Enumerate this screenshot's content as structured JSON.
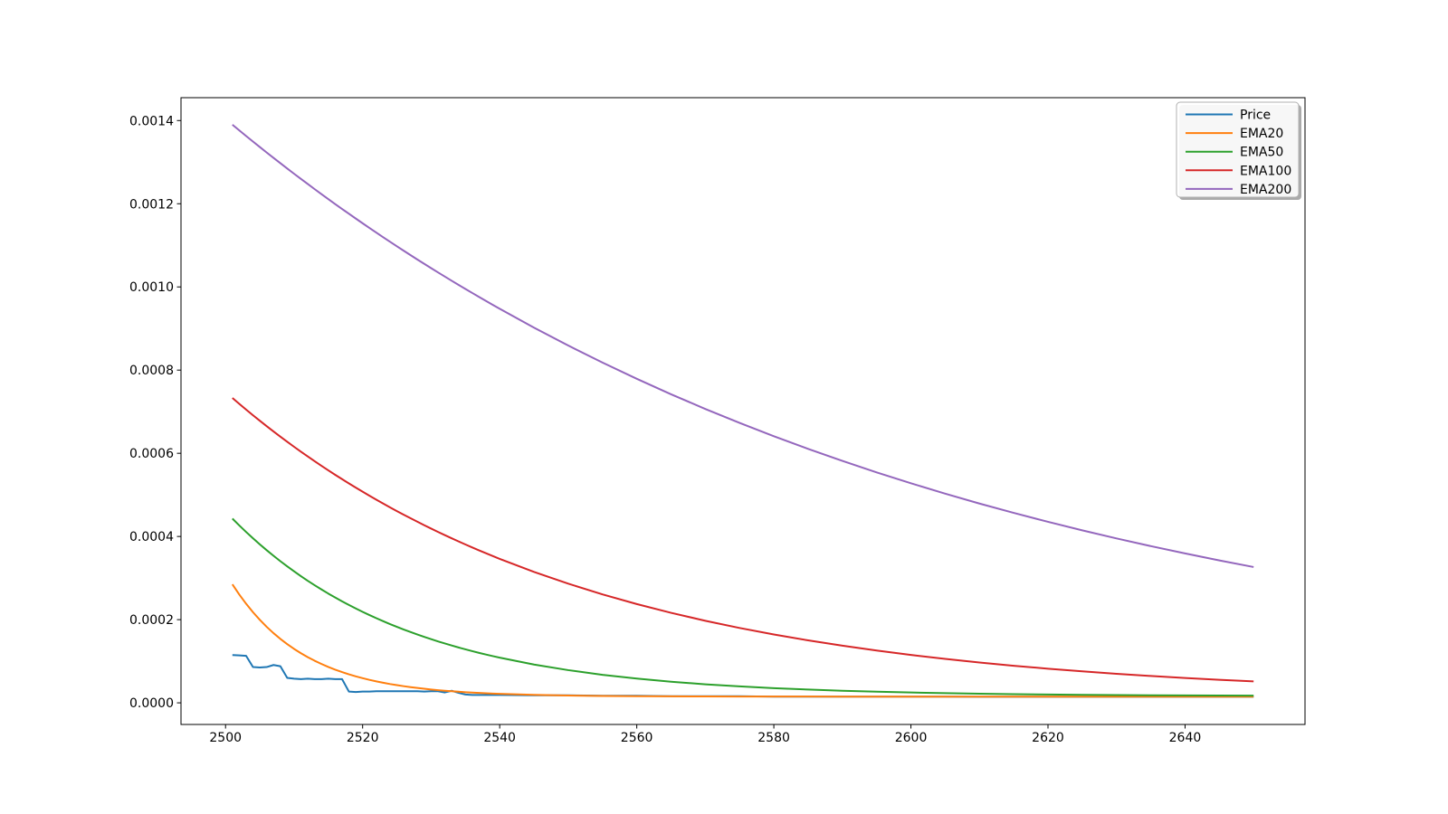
{
  "figure": {
    "background_color": "#ffffff",
    "spine_color": "#000000",
    "tick_label_color": "#000000"
  },
  "chart_data": {
    "type": "line",
    "title": "",
    "xlabel": "",
    "ylabel": "",
    "grid": false,
    "xlim": [
      2493.5,
      2657.5
    ],
    "ylim": [
      -5.2e-05,
      0.001455
    ],
    "xticks": {
      "values": [
        2500,
        2520,
        2540,
        2560,
        2580,
        2600,
        2620,
        2640
      ],
      "labels": [
        "2500",
        "2520",
        "2540",
        "2560",
        "2580",
        "2600",
        "2620",
        "2640"
      ]
    },
    "yticks": {
      "values": [
        0,
        0.0002,
        0.0004,
        0.0006,
        0.0008,
        0.001,
        0.0012,
        0.0014
      ],
      "labels": [
        "0.0000",
        "0.0002",
        "0.0004",
        "0.0006",
        "0.0008",
        "0.0010",
        "0.0012",
        "0.0014"
      ]
    },
    "x": [
      2501,
      2502,
      2503,
      2504,
      2505,
      2506,
      2507,
      2508,
      2509,
      2510,
      2511,
      2512,
      2513,
      2514,
      2515,
      2516,
      2517,
      2518,
      2519,
      2520,
      2521,
      2522,
      2523,
      2524,
      2525,
      2526,
      2527,
      2528,
      2529,
      2530,
      2531,
      2532,
      2533,
      2534,
      2535,
      2536,
      2537,
      2538,
      2539,
      2540,
      2545,
      2550,
      2555,
      2560,
      2565,
      2570,
      2575,
      2580,
      2585,
      2590,
      2595,
      2600,
      2605,
      2610,
      2615,
      2620,
      2625,
      2630,
      2635,
      2640,
      2645,
      2650
    ],
    "series": [
      {
        "name": "Price",
        "color": "#1f77b4",
        "values": [
          0.000115,
          0.000114,
          0.000113,
          8.6e-05,
          8.5e-05,
          8.6e-05,
          9.1e-05,
          8.8e-05,
          6e-05,
          5.8e-05,
          5.7e-05,
          5.8e-05,
          5.7e-05,
          5.7e-05,
          5.8e-05,
          5.7e-05,
          5.7e-05,
          2.7e-05,
          2.6e-05,
          2.7e-05,
          2.7e-05,
          2.8e-05,
          2.8e-05,
          2.8e-05,
          2.8e-05,
          2.8e-05,
          2.8e-05,
          2.8e-05,
          2.7e-05,
          2.8e-05,
          2.8e-05,
          2.5e-05,
          2.9e-05,
          2.4e-05,
          2e-05,
          1.9e-05,
          1.9e-05,
          1.9e-05,
          1.9e-05,
          1.9e-05,
          1.8e-05,
          1.8e-05,
          1.7e-05,
          1.7e-05,
          1.6e-05,
          1.6e-05,
          1.6e-05,
          1.5e-05,
          1.5e-05,
          1.5e-05,
          1.5e-05,
          1.5e-05,
          1.5e-05,
          1.45e-05,
          1.45e-05,
          1.45e-05,
          1.45e-05,
          1.45e-05,
          1.45e-05,
          1.45e-05,
          1.45e-05,
          1.45e-05
        ]
      },
      {
        "name": "EMA20",
        "color": "#ff7f0e",
        "values": [
          0.000285,
          0.0002605,
          0.0002382,
          0.0002179,
          0.0001995,
          0.0001827,
          0.0001675,
          0.0001537,
          0.0001411,
          0.0001296,
          0.0001192,
          0.0001098,
          0.0001012,
          9.34e-05,
          8.62e-05,
          7.98e-05,
          7.39e-05,
          6.85e-05,
          6.37e-05,
          5.93e-05,
          5.52e-05,
          5.16e-05,
          4.83e-05,
          4.52e-05,
          4.25e-05,
          4e-05,
          3.77e-05,
          3.57e-05,
          3.38e-05,
          3.21e-05,
          3.05e-05,
          2.91e-05,
          2.78e-05,
          2.67e-05,
          2.56e-05,
          2.46e-05,
          2.38e-05,
          2.3e-05,
          2.22e-05,
          2.16e-05,
          1.91e-05,
          1.75e-05,
          1.66e-05,
          1.6e-05,
          1.56e-05,
          1.54e-05,
          1.52e-05,
          1.51e-05,
          1.51e-05,
          1.5e-05,
          1.5e-05,
          1.5e-05,
          1.5e-05,
          1.5e-05,
          1.5e-05,
          1.5e-05,
          1.5e-05,
          1.5e-05,
          1.5e-05,
          1.5e-05,
          1.5e-05,
          1.5e-05
        ]
      },
      {
        "name": "EMA50",
        "color": "#2ca02c",
        "values": [
          0.000443,
          0.0004266,
          0.0004108,
          0.0003956,
          0.000381,
          0.000367,
          0.0003535,
          0.0003405,
          0.0003281,
          0.0003161,
          0.0003045,
          0.0002934,
          0.0002828,
          0.0002725,
          0.0002626,
          0.0002532,
          0.0002441,
          0.0002353,
          0.0002268,
          0.0002187,
          0.000211,
          0.0002035,
          0.0001963,
          0.0001893,
          0.0001827,
          0.0001763,
          0.0001701,
          0.0001642,
          0.0001585,
          0.000153,
          0.0001477,
          0.0001427,
          0.0001378,
          0.0001331,
          0.0001286,
          0.0001243,
          0.0001201,
          0.0001161,
          0.0001123,
          0.0001086,
          9.21e-05,
          7.86e-05,
          6.74e-05,
          5.83e-05,
          5.07e-05,
          4.46e-05,
          3.95e-05,
          3.53e-05,
          3.19e-05,
          2.9e-05,
          2.67e-05,
          2.48e-05,
          2.32e-05,
          2.19e-05,
          2.09e-05,
          2e-05,
          1.93e-05,
          1.87e-05,
          1.82e-05,
          1.78e-05,
          1.75e-05,
          1.72e-05
        ]
      },
      {
        "name": "EMA100",
        "color": "#d62728",
        "values": [
          0.000733,
          0.0007189,
          0.0007051,
          0.0006915,
          0.0006782,
          0.0006652,
          0.0006525,
          0.00064,
          0.0006277,
          0.0006156,
          0.0006038,
          0.0005923,
          0.000581,
          0.0005698,
          0.000559,
          0.0005482,
          0.0005378,
          0.0005275,
          0.0005174,
          0.0005076,
          0.0004979,
          0.0004884,
          0.0004791,
          0.00047,
          0.000461,
          0.0004523,
          0.0004437,
          0.0004353,
          0.000427,
          0.0004189,
          0.000411,
          0.0004032,
          0.0003956,
          0.0003881,
          0.0003807,
          0.0003736,
          0.0003665,
          0.0003596,
          0.0003528,
          0.0003462,
          0.0003148,
          0.0002865,
          0.0002608,
          0.0002375,
          0.0002164,
          0.0001973,
          0.00018,
          0.0001644,
          0.0001502,
          0.0001374,
          0.0001257,
          0.0001152,
          0.0001056,
          9.7e-05,
          8.92e-05,
          8.21e-05,
          7.57e-05,
          6.98e-05,
          6.46e-05,
          5.98e-05,
          5.55e-05,
          5.16e-05
        ]
      },
      {
        "name": "EMA200",
        "color": "#9467bd",
        "values": [
          0.00139,
          0.0013764,
          0.0013629,
          0.0013495,
          0.0013363,
          0.0013232,
          0.0013103,
          0.0012974,
          0.0012847,
          0.0012721,
          0.0012597,
          0.0012474,
          0.0012351,
          0.0012231,
          0.0012111,
          0.0011992,
          0.0011875,
          0.0011759,
          0.0011644,
          0.001153,
          0.0011417,
          0.0011305,
          0.0011195,
          0.0011086,
          0.0010977,
          0.001087,
          0.0010764,
          0.0010658,
          0.0010554,
          0.0010451,
          0.0010349,
          0.0010248,
          0.0010148,
          0.0010049,
          0.0009951,
          0.0009854,
          0.0009758,
          0.0009662,
          0.0009568,
          0.0009475,
          0.0009022,
          0.0008591,
          0.0008181,
          0.0007791,
          0.0007419,
          0.0007066,
          0.000673,
          0.000641,
          0.0006106,
          0.0005817,
          0.0005541,
          0.0005279,
          0.000503,
          0.0004792,
          0.0004567,
          0.0004352,
          0.0004147,
          0.0003953,
          0.0003768,
          0.0003592,
          0.0003424,
          0.0003265
        ]
      }
    ],
    "legend": {
      "position": "upper right",
      "frame_color": "#b0b0b0",
      "frame_fill": "#ffffff",
      "shadow": true,
      "entries": [
        "Price",
        "EMA20",
        "EMA50",
        "EMA100",
        "EMA200"
      ]
    }
  }
}
